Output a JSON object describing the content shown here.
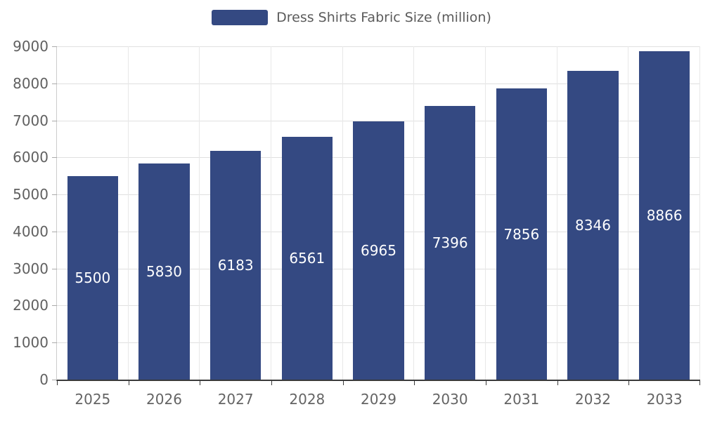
{
  "chart_data": {
    "type": "bar",
    "title": "Dress Shirts Fabric Size (million)",
    "categories": [
      "2025",
      "2026",
      "2027",
      "2028",
      "2029",
      "2030",
      "2031",
      "2032",
      "2033"
    ],
    "values": [
      5500,
      5830,
      6183,
      6561,
      6965,
      7396,
      7856,
      8346,
      8866
    ],
    "xlabel": "",
    "ylabel": "",
    "ylim": [
      0,
      9000
    ],
    "ytick_step": 1000,
    "grid": true,
    "legend_position": "top",
    "colors": {
      "bar": "#344982",
      "value_label": "#ffffff",
      "axis_label": "#646464",
      "gridline": "#e0e0e0",
      "vgridline": "#e8e8e8",
      "axis_line": "#3a3a3a"
    }
  }
}
